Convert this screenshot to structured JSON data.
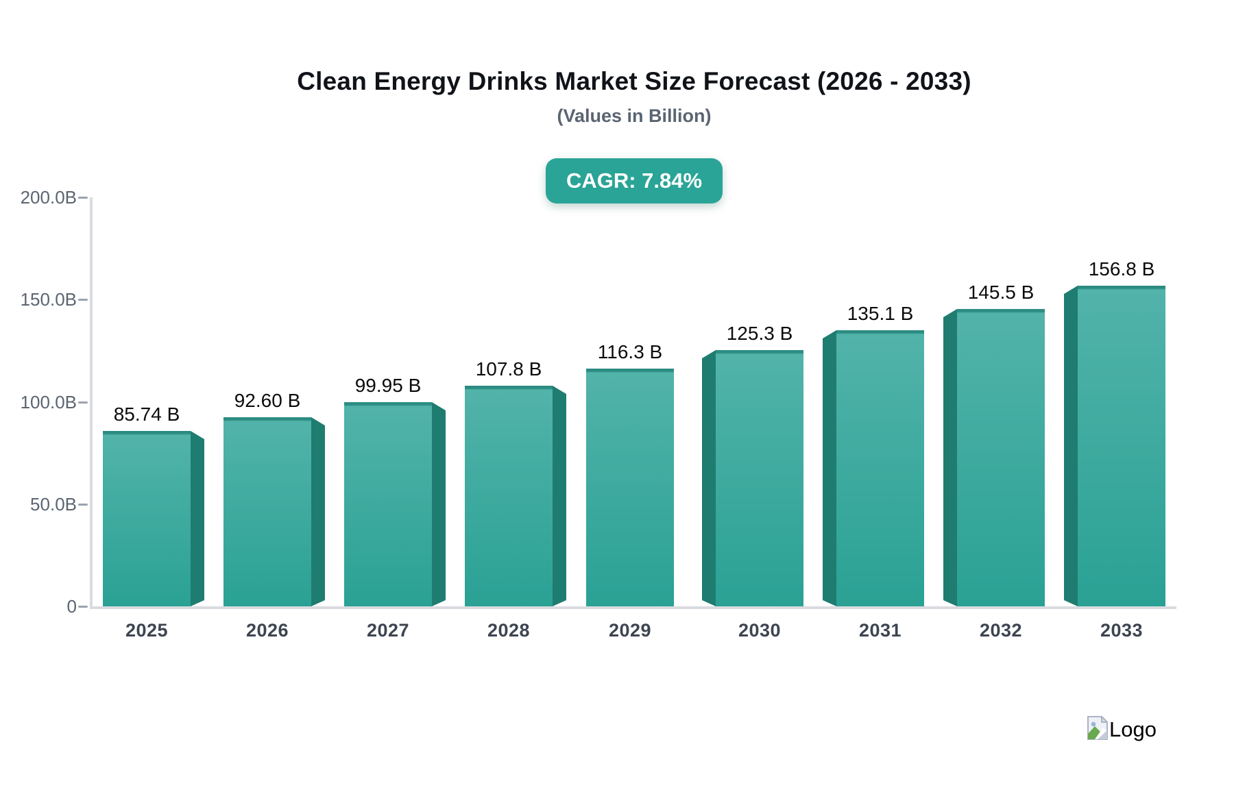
{
  "title": "Clean Energy Drinks Market Size Forecast (2026 - 2033)",
  "subtitle": "(Values in Billion)",
  "cagr_badge": "CAGR: 7.84%",
  "logo_alt": "Logo",
  "chart_data": {
    "type": "bar",
    "title": "Clean Energy Drinks Market Size Forecast (2026 - 2033)",
    "subtitle": "(Values in Billion)",
    "annotation": "CAGR: 7.84%",
    "categories": [
      "2025",
      "2026",
      "2027",
      "2028",
      "2029",
      "2030",
      "2031",
      "2032",
      "2033"
    ],
    "values": [
      85.74,
      92.6,
      99.95,
      107.8,
      116.3,
      125.3,
      135.1,
      145.5,
      156.8
    ],
    "value_labels": [
      "85.74 B",
      "92.60 B",
      "99.95 B",
      "107.8 B",
      "116.3 B",
      "125.3 B",
      "135.1 B",
      "145.5 B",
      "156.8 B"
    ],
    "xlabel": "",
    "ylabel": "",
    "ylim": [
      0,
      200
    ],
    "y_tick_labels": [
      "200.0B",
      "150.0B",
      "100.0B",
      "50.0B",
      "0"
    ],
    "grid": false,
    "legend": false,
    "bar_3d_side": [
      "right",
      "right",
      "right",
      "right",
      "none",
      "left",
      "left",
      "left",
      "left"
    ],
    "colors": {
      "bar_gradient_top": "#52b3aa",
      "bar_gradient_bottom": "#2aa194",
      "bar_top_edge": "#2c8c82",
      "bar_side_face": "#1f7c70",
      "badge_background": "#2aa496",
      "badge_text": "#ffffff",
      "axis_line": "#d9dbe0",
      "tick_mark": "#9aa2ad",
      "y_label_text": "#5b6571",
      "x_label_text": "#3d4450",
      "value_label_text": "#0c0c0c"
    }
  }
}
